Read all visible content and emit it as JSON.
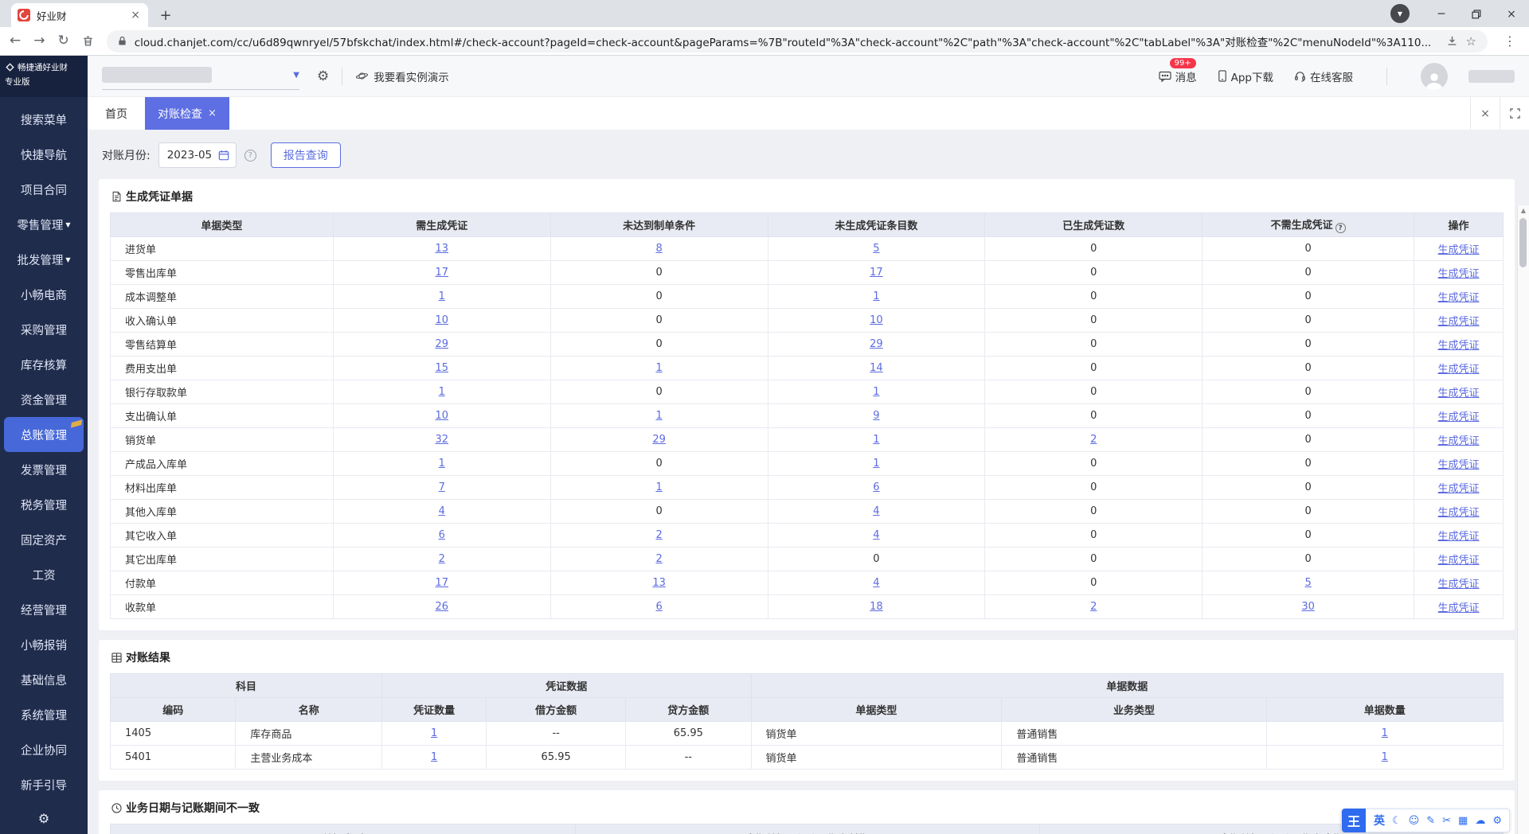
{
  "browser": {
    "tab_title": "好业财",
    "new_tab_label": "+",
    "url": "cloud.chanjet.com/cc/u6d89qwnryel/57bfskchat/index.html#/check-account?pageId=check-account&pageParams=%7B\"routeId\"%3A\"check-account\"%2C\"path\"%3A\"check-account\"%2C\"tabLabel\"%3A\"对账检查\"%2C\"menuNodeId\"%3A110..."
  },
  "header": {
    "logo_title": "畅捷通好业财",
    "logo_edition": "专业版",
    "demo_link": "我要看实例演示",
    "message_label": "消息",
    "message_badge": "99+",
    "app_download_label": "App下载",
    "service_label": "在线客服"
  },
  "sidebar": {
    "items": [
      {
        "label": "搜索菜单"
      },
      {
        "label": "快捷导航"
      },
      {
        "label": "项目合同"
      },
      {
        "label": "零售管理",
        "arrow": true
      },
      {
        "label": "批发管理",
        "arrow": true
      },
      {
        "label": "小畅电商"
      },
      {
        "label": "采购管理"
      },
      {
        "label": "库存核算"
      },
      {
        "label": "资金管理"
      },
      {
        "label": "总账管理",
        "active": true
      },
      {
        "label": "发票管理"
      },
      {
        "label": "税务管理"
      },
      {
        "label": "固定资产"
      },
      {
        "label": "工资"
      },
      {
        "label": "经营管理"
      },
      {
        "label": "小畅报销"
      },
      {
        "label": "基础信息"
      },
      {
        "label": "系统管理"
      },
      {
        "label": "企业协同"
      },
      {
        "label": "新手引导"
      }
    ]
  },
  "tabs": {
    "home_label": "首页",
    "active_label": "对账检查"
  },
  "filter": {
    "label": "对账月份:",
    "value": "2023-05",
    "query_button": "报告查询"
  },
  "voucher_section": {
    "title": "生成凭证单据",
    "columns": [
      "单据类型",
      "需生成凭证",
      "未达到制单条件",
      "未生成凭证条目数",
      "已生成凭证数",
      "不需生成凭证",
      "操作"
    ],
    "action_label": "生成凭证",
    "rows": [
      [
        "进货单",
        "13",
        "8",
        "5",
        "0",
        "0"
      ],
      [
        "零售出库单",
        "17",
        "0",
        "17",
        "0",
        "0"
      ],
      [
        "成本调整单",
        "1",
        "0",
        "1",
        "0",
        "0"
      ],
      [
        "收入确认单",
        "10",
        "0",
        "10",
        "0",
        "0"
      ],
      [
        "零售结算单",
        "29",
        "0",
        "29",
        "0",
        "0"
      ],
      [
        "费用支出单",
        "15",
        "1",
        "14",
        "0",
        "0"
      ],
      [
        "银行存取款单",
        "1",
        "0",
        "1",
        "0",
        "0"
      ],
      [
        "支出确认单",
        "10",
        "1",
        "9",
        "0",
        "0"
      ],
      [
        "销货单",
        "32",
        "29",
        "1",
        "2",
        "0"
      ],
      [
        "产成品入库单",
        "1",
        "0",
        "1",
        "0",
        "0"
      ],
      [
        "材料出库单",
        "7",
        "1",
        "6",
        "0",
        "0"
      ],
      [
        "其他入库单",
        "4",
        "0",
        "4",
        "0",
        "0"
      ],
      [
        "其它收入单",
        "6",
        "2",
        "4",
        "0",
        "0"
      ],
      [
        "其它出库单",
        "2",
        "2",
        "0",
        "0",
        "0"
      ],
      [
        "付款单",
        "17",
        "13",
        "4",
        "0",
        "5"
      ],
      [
        "收款单",
        "26",
        "6",
        "18",
        "2",
        "30"
      ]
    ]
  },
  "recon_section": {
    "title": "对账结果",
    "groups": [
      "科目",
      "凭证数据",
      "单据数据"
    ],
    "columns": [
      "编码",
      "名称",
      "凭证数量",
      "借方金额",
      "贷方金额",
      "单据类型",
      "业务类型",
      "单据数量"
    ],
    "rows": [
      [
        "1405",
        "库存商品",
        "1",
        "--",
        "65.95",
        "销货单",
        "普通销售",
        "1"
      ],
      [
        "5401",
        "主营业务成本",
        "1",
        "65.95",
        "--",
        "销货单",
        "普通销售",
        "1"
      ]
    ]
  },
  "datecheck_section": {
    "title": "业务日期与记账期间不一致",
    "columns": [
      "单据类型",
      "当期单据，记账日期在前期",
      "不是当期单据，记账日期在当期"
    ]
  },
  "ime": {
    "badge": "王",
    "mode": "英",
    "icons": [
      {
        "name": "moon-icon",
        "glyph": "☾"
      },
      {
        "name": "emoji-icon",
        "glyph": "☺"
      },
      {
        "name": "handwriting-icon",
        "glyph": "✎"
      },
      {
        "name": "clipboard-icon",
        "glyph": "✂"
      },
      {
        "name": "keyboard-icon",
        "glyph": "▦"
      },
      {
        "name": "cloud-icon",
        "glyph": "☁"
      },
      {
        "name": "toolbox-icon",
        "glyph": "⚙"
      }
    ]
  },
  "colors": {
    "accent": "#5d6fe2",
    "link": "#5c6be0",
    "sidebar_bg": "#202c4c",
    "sidebar_active": "#4668d9",
    "badge_red": "#f5364a",
    "favicon_red": "#e2453e",
    "table_header_bg": "#e9ebf4",
    "content_bg": "#eef0f4"
  }
}
